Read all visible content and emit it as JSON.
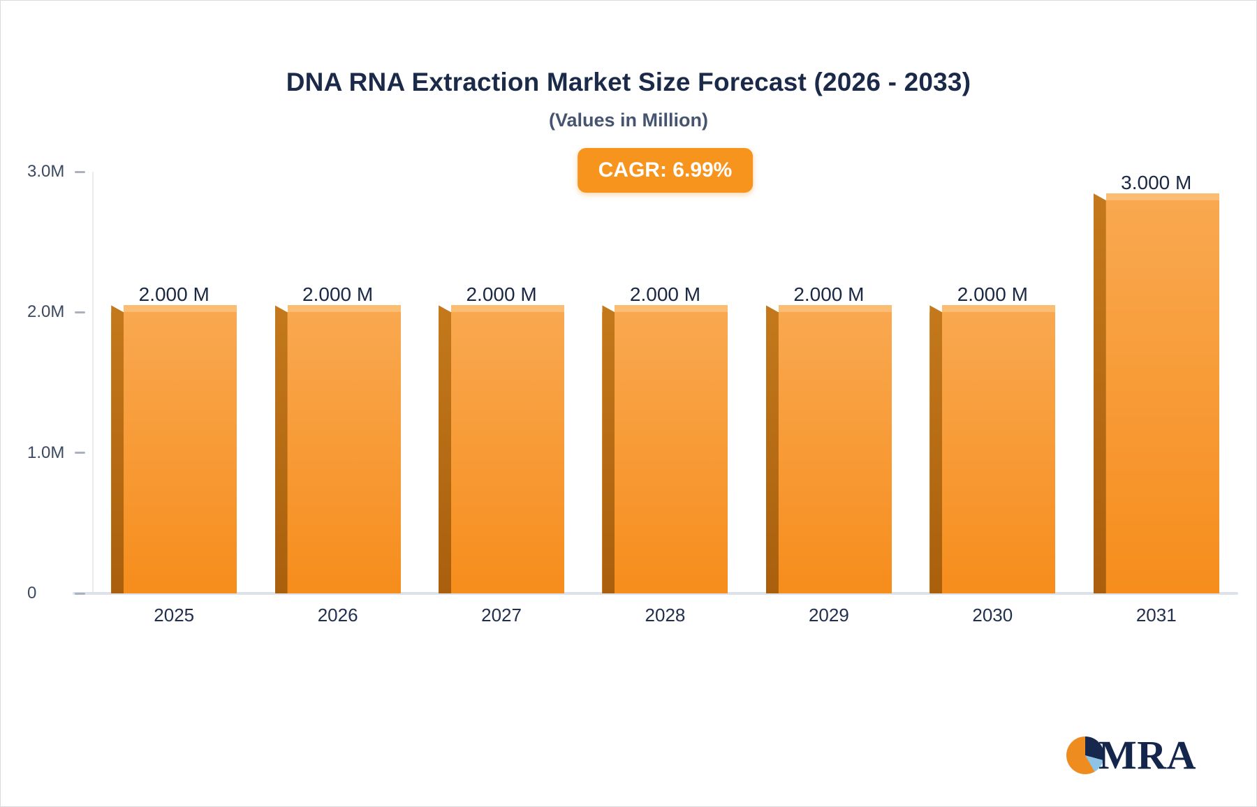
{
  "logo": {
    "text": "MRA"
  },
  "chart_data": {
    "type": "bar",
    "title": "DNA RNA Extraction Market Size Forecast (2026 - 2033)",
    "subtitle": "(Values in Million)",
    "cagr_label": "CAGR: 6.99%",
    "cagr_value": "6.99%",
    "categories": [
      "2025",
      "2026",
      "2027",
      "2028",
      "2029",
      "2030",
      "2031"
    ],
    "values": [
      2.0,
      2.0,
      2.0,
      2.0,
      2.0,
      2.0,
      3.0
    ],
    "value_labels": [
      "2.000 M",
      "2.000 M",
      "2.000 M",
      "2.000 M",
      "2.000 M",
      "2.000 M",
      "3.000 M"
    ],
    "unit": "Million",
    "xlabel": "",
    "ylabel": "",
    "ylim": [
      0,
      3
    ],
    "yticks": [
      {
        "label": "3.0M",
        "value": 3
      },
      {
        "label": "2.0M",
        "value": 2
      },
      {
        "label": "1.0M",
        "value": 1
      },
      {
        "label": "0",
        "value": 0
      }
    ],
    "grid": false,
    "legend": "none",
    "accent_color": "#f7941e",
    "bar_color_top": "#f9a850",
    "bar_color_bottom": "#f68d1c",
    "bar_side_color": "#c4791c",
    "bar_top_face_color": "#fbbd72"
  }
}
